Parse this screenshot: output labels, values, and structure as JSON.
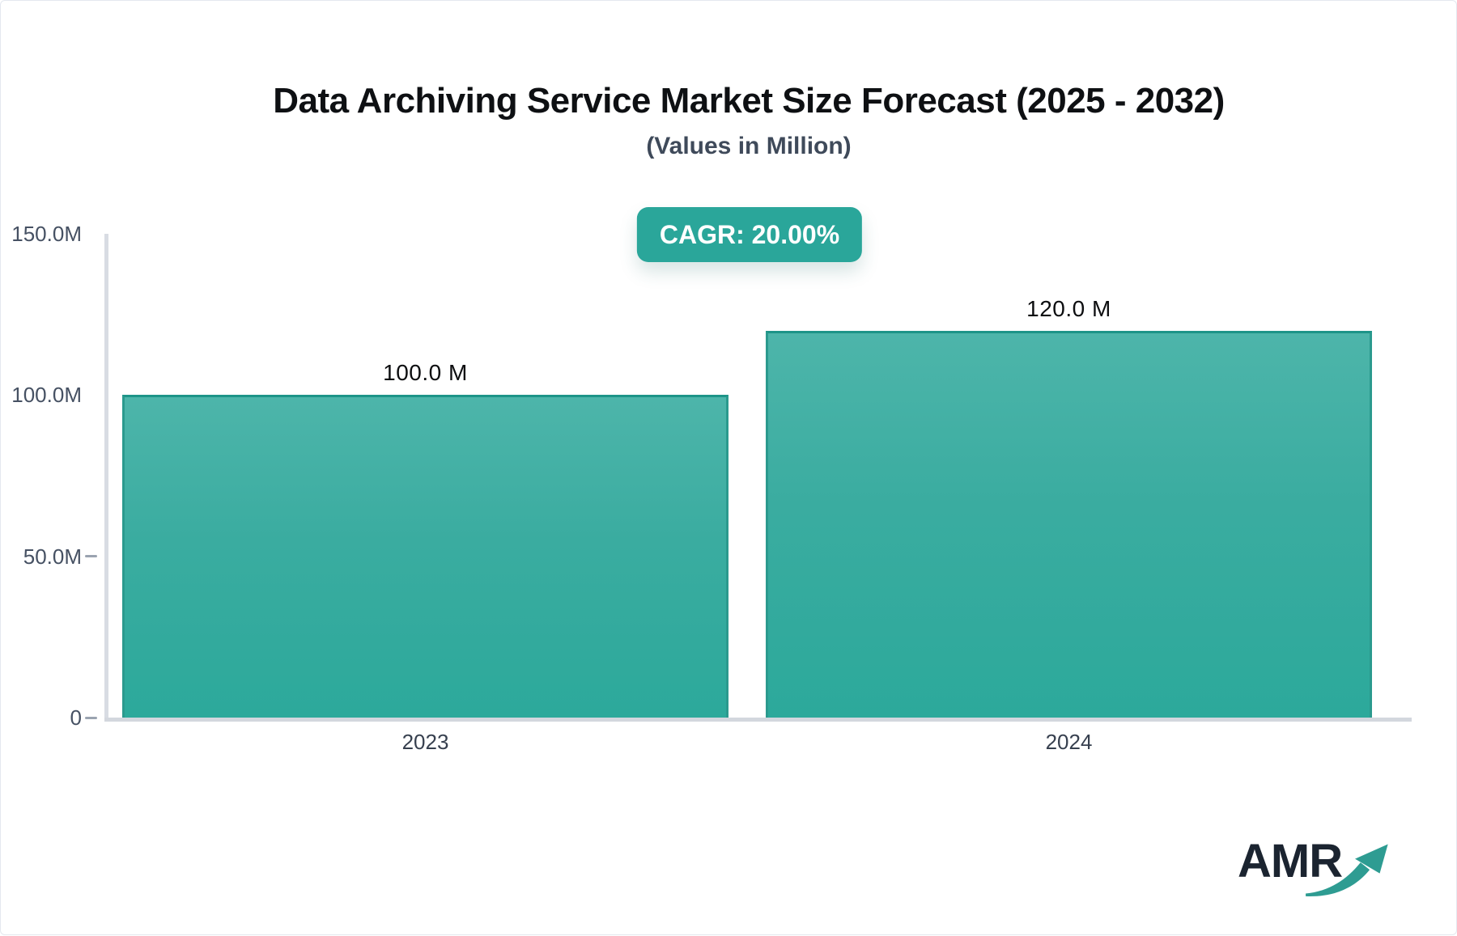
{
  "header": {
    "title": "Data Archiving Service Market Size Forecast (2025 - 2032)",
    "subtitle": "(Values in Million)",
    "cagr_badge_label": "CAGR: 20.00%"
  },
  "chart_data": {
    "type": "bar",
    "title": "Data Archiving Service Market Size Forecast (2025 - 2032)",
    "subtitle": "(Values in Million)",
    "unit": "Million",
    "cagr_percent": 20.0,
    "categories": [
      "2023",
      "2024"
    ],
    "values": [
      100.0,
      120.0
    ],
    "value_labels": [
      "100.0 M",
      "120.0 M"
    ],
    "ylim": [
      0,
      150
    ],
    "yticks": [
      {
        "label": "150.0M",
        "value": 150,
        "dash": false
      },
      {
        "label": "100.0M",
        "value": 100,
        "dash": false
      },
      {
        "label": "50.0M",
        "value": 50,
        "dash": true
      },
      {
        "label": "0",
        "value": 0,
        "dash": true
      }
    ],
    "grid": false,
    "legend": "none",
    "colors": {
      "bar_gradient_top": "#4db5aa",
      "bar_gradient_bottom": "#2ca99b",
      "bar_edge": "#1d9488",
      "axis_line": "#d7dbe2",
      "tick_label_color": "#465163",
      "value_label_color": "#0d0e10",
      "badge_bg": "#2aa69a",
      "badge_text": "#ffffff"
    }
  },
  "logo": {
    "text": "AMR",
    "text_color": "#1b2430",
    "arrow_color": "#2e9c92"
  }
}
